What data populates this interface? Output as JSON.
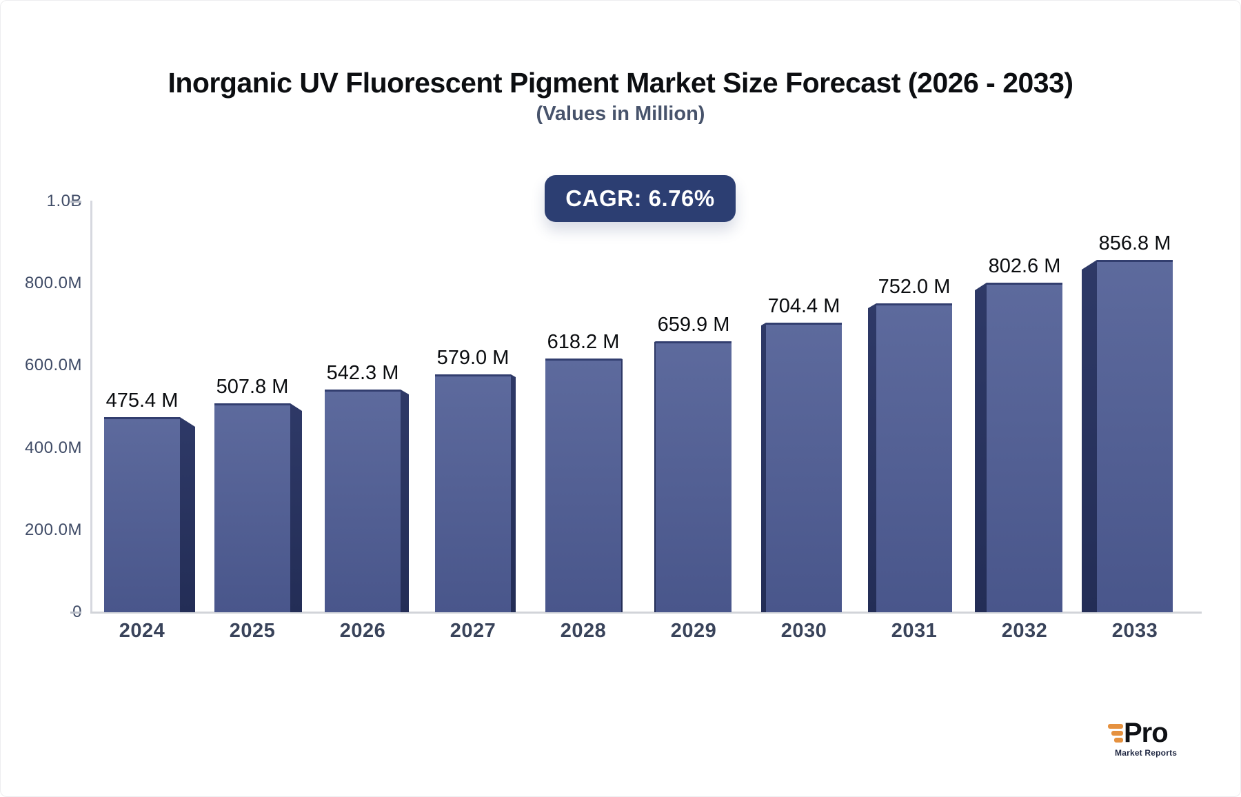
{
  "header": {
    "title": "Inorganic UV Fluorescent Pigment Market Size Forecast (2026 - 2033)",
    "subtitle": "(Values in Million)"
  },
  "badge": {
    "label": "CAGR: 6.76%"
  },
  "chart_data": {
    "type": "bar",
    "title": "Inorganic UV Fluorescent Pigment Market Size Forecast (2026 - 2033)",
    "subtitle": "(Values in Million)",
    "xlabel": "",
    "ylabel": "",
    "ylim": [
      0,
      1000
    ],
    "unit": "Million",
    "grid": false,
    "legend": false,
    "categories": [
      "2024",
      "2025",
      "2026",
      "2027",
      "2028",
      "2029",
      "2030",
      "2031",
      "2032",
      "2033"
    ],
    "values": [
      475.4,
      507.8,
      542.3,
      579.0,
      618.2,
      659.9,
      704.4,
      752.0,
      802.6,
      856.8
    ],
    "value_labels": [
      "475.4 M",
      "507.8 M",
      "542.3 M",
      "579.0 M",
      "618.2 M",
      "659.9 M",
      "704.4 M",
      "752.0 M",
      "802.6 M",
      "856.8 M"
    ],
    "y_ticks": [
      {
        "label": "1.0B",
        "value": 1000,
        "dash": true
      },
      {
        "label": "800.0M",
        "value": 800,
        "dash": false
      },
      {
        "label": "600.0M",
        "value": 600,
        "dash": false
      },
      {
        "label": "400.0M",
        "value": 400,
        "dash": false
      },
      {
        "label": "200.0M",
        "value": 200,
        "dash": false
      },
      {
        "label": "0",
        "value": 0,
        "dash": true
      }
    ]
  },
  "colors": {
    "title": "#0c0e11",
    "subtitle": "#47536b",
    "badge_bg": "#2c3e72",
    "badge_text": "#ffffff",
    "bar_front_top": "#5d6a9d",
    "bar_front_bottom": "#49568b",
    "bar_top_cap": "#323e6f",
    "bar_side_top": "#2e3967",
    "bar_side_bottom": "#232d56",
    "value_label": "#0b0d10",
    "x_label": "#39435a",
    "y_label": "#3f4b66",
    "axis_line": "#d6d8df",
    "baseline": "#d2d4d9",
    "tick_dash": "#b9bdc7",
    "logo_orange": "#e5913f",
    "logo_pro": "#0f1115",
    "logo_tagline": "#1d2540"
  },
  "logo": {
    "name": "Pro",
    "tagline": "Market Reports"
  }
}
